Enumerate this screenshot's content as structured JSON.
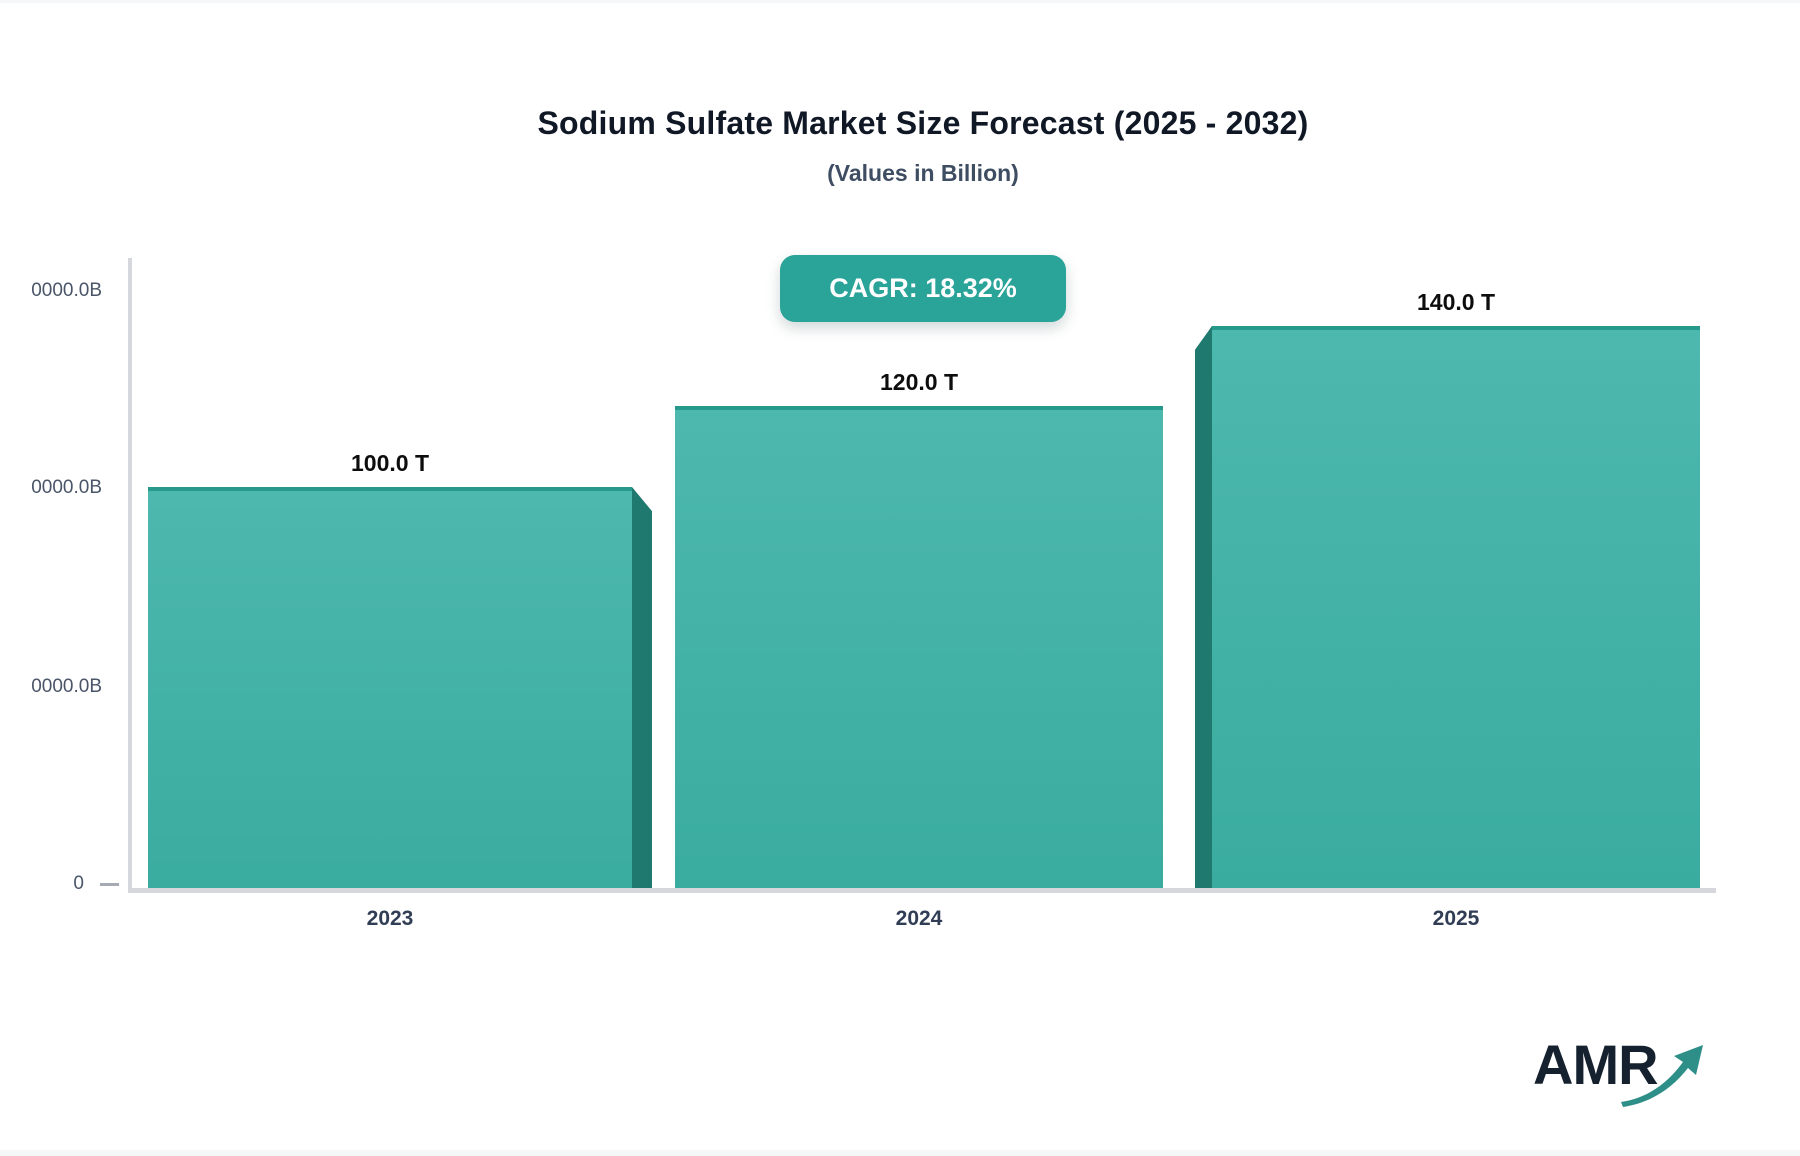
{
  "title": "Sodium Sulfate Market Size Forecast (2025 - 2032)",
  "subtitle": "(Values in Billion)",
  "badge": {
    "label": "CAGR: 18.32%",
    "bg_color": "#2aa399"
  },
  "chart_data": {
    "type": "bar",
    "categories": [
      "2023",
      "2024",
      "2025"
    ],
    "values": [
      100.0,
      120.0,
      140.0
    ],
    "unit": "T",
    "value_labels": [
      "100.0 T",
      "120.0 T",
      "140.0 T"
    ],
    "title": "Sodium Sulfate Market Size Forecast (2025 - 2032)",
    "subtitle": "(Values in Billion)",
    "xlabel": "",
    "ylabel": "",
    "y_tick_labels_visible": [
      "0000.0B",
      "0000.0B",
      "0000.0B",
      "0"
    ],
    "ylim": [
      0,
      150
    ],
    "grid": false,
    "legend": "none",
    "bar_face_top_color": "#4db8ae",
    "bar_face_bottom_color": "#3aac9f",
    "bar_top_edge_color": "#27998b",
    "bar_side_shadow_color": "#20796e",
    "axis_line_color": "#d5d7dd"
  },
  "logo": {
    "text": "AMR",
    "arrow_color": "#2e8f88",
    "text_color": "#15212e"
  }
}
